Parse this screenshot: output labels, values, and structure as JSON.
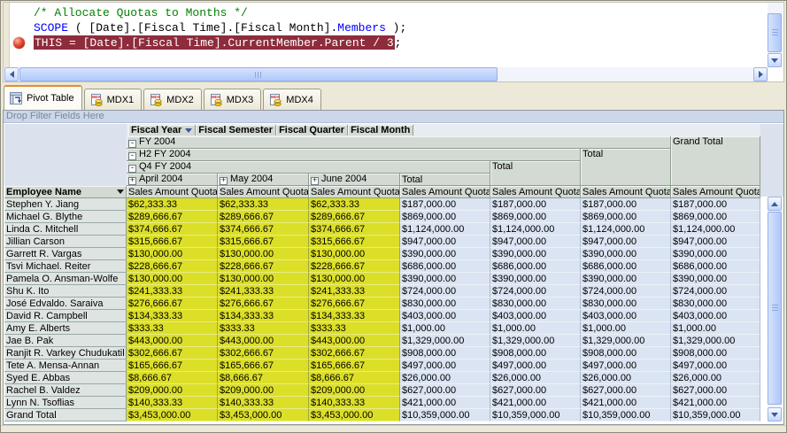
{
  "editor": {
    "comment_line": "/* Allocate Quotas to Months */",
    "scope_keyword": "SCOPE",
    "scope_body": " ( [Date].[Fiscal Time].[Fiscal Month].",
    "members_keyword": "Members",
    "scope_end": " );",
    "this_statement": "THIS = [Date].[Fiscal Time].CurrentMember.Parent / 3",
    "this_end": ";"
  },
  "tabs": [
    {
      "label": "Pivot Table",
      "active": true
    },
    {
      "label": "MDX1",
      "active": false
    },
    {
      "label": "MDX2",
      "active": false
    },
    {
      "label": "MDX3",
      "active": false
    },
    {
      "label": "MDX4",
      "active": false
    }
  ],
  "pivot": {
    "drop_filter_label": "Drop Filter Fields Here",
    "fields": {
      "year": "Fiscal Year",
      "semester": "Fiscal Semester",
      "quarter": "Fiscal Quarter",
      "month": "Fiscal Month"
    },
    "row_field_label": "Employee Name",
    "hierarchy": {
      "year": "FY 2004",
      "semester": "H2 FY 2004",
      "quarter": "Q4 FY 2004",
      "months": [
        "April 2004",
        "May 2004",
        "June 2004"
      ],
      "total_label": "Total",
      "grand_total_label": "Grand Total"
    },
    "measure_label": "Sales Amount Quota",
    "rows": [
      {
        "name": "Stephen Y. Jiang",
        "month_value": "$62,333.33",
        "total_value": "$187,000.00"
      },
      {
        "name": "Michael G. Blythe",
        "month_value": "$289,666.67",
        "total_value": "$869,000.00"
      },
      {
        "name": "Linda C. Mitchell",
        "month_value": "$374,666.67",
        "total_value": "$1,124,000.00"
      },
      {
        "name": "Jillian Carson",
        "month_value": "$315,666.67",
        "total_value": "$947,000.00"
      },
      {
        "name": "Garrett R. Vargas",
        "month_value": "$130,000.00",
        "total_value": "$390,000.00"
      },
      {
        "name": "Tsvi Michael. Reiter",
        "month_value": "$228,666.67",
        "total_value": "$686,000.00"
      },
      {
        "name": "Pamela O. Ansman-Wolfe",
        "month_value": "$130,000.00",
        "total_value": "$390,000.00"
      },
      {
        "name": "Shu K. Ito",
        "month_value": "$241,333.33",
        "total_value": "$724,000.00"
      },
      {
        "name": "José Edvaldo. Saraiva",
        "month_value": "$276,666.67",
        "total_value": "$830,000.00"
      },
      {
        "name": "David R. Campbell",
        "month_value": "$134,333.33",
        "total_value": "$403,000.00"
      },
      {
        "name": "Amy E. Alberts",
        "month_value": "$333.33",
        "total_value": "$1,000.00"
      },
      {
        "name": "Jae B. Pak",
        "month_value": "$443,000.00",
        "total_value": "$1,329,000.00"
      },
      {
        "name": "Ranjit R. Varkey Chudukatil",
        "month_value": "$302,666.67",
        "total_value": "$908,000.00"
      },
      {
        "name": "Tete A. Mensa-Annan",
        "month_value": "$165,666.67",
        "total_value": "$497,000.00"
      },
      {
        "name": "Syed E. Abbas",
        "month_value": "$8,666.67",
        "total_value": "$26,000.00"
      },
      {
        "name": "Rachel B. Valdez",
        "month_value": "$209,000.00",
        "total_value": "$627,000.00"
      },
      {
        "name": "Lynn N. Tsoflias",
        "month_value": "$140,333.33",
        "total_value": "$421,000.00"
      },
      {
        "name": "Grand Total",
        "month_value": "$3,453,000.00",
        "total_value": "$10,359,000.00"
      }
    ]
  },
  "colors": {
    "highlight_line_bg": "#8e2c3c",
    "comment_green": "#008000",
    "keyword_blue": "#0000ff",
    "quota_cell_yellow": "#dcdf28",
    "total_cell_blue": "#dbe4f2",
    "header_cell_gray": "#d3dad3",
    "active_tab_accent": "#e68b2c",
    "breakpoint_red": "#c0281a"
  }
}
